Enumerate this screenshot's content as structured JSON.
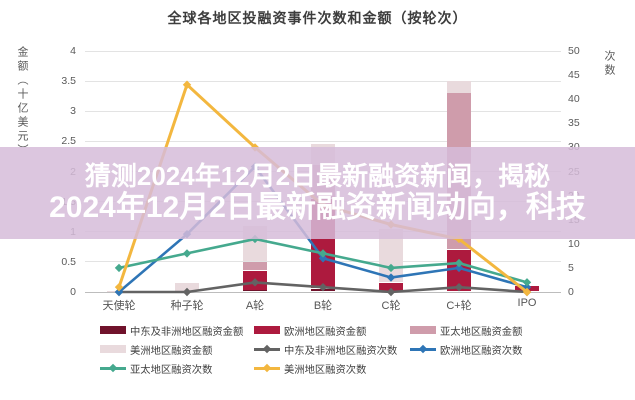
{
  "overlay": {
    "line1": "猜测2024年12月2日最新融资新闻，揭秘",
    "line2": "2024年12月2日最新融资新闻动向，科技",
    "background_rgba": "rgba(214,188,217,0.85)",
    "text_color": "#ffffff"
  },
  "chart_data": {
    "type": "combo-stacked-bar-line",
    "title": "全球各地区投融资事件次数和金额（按轮次）",
    "categories": [
      "天使轮",
      "种子轮",
      "A轮",
      "B轮",
      "C轮",
      "C+轮",
      "IPO"
    ],
    "bar_series": [
      {
        "name": "中东及非洲地区融资金额",
        "color": "#70122b",
        "values": [
          0,
          0,
          0.03,
          0.05,
          0,
          0,
          0
        ]
      },
      {
        "name": "欧洲地区融资金额",
        "color": "#ad1a3e",
        "values": [
          0,
          0,
          0.32,
          1.5,
          0.15,
          0.7,
          0.1
        ]
      },
      {
        "name": "亚太地区融资金额",
        "color": "#cf9cab",
        "values": [
          0,
          0,
          0.15,
          0.55,
          0,
          2.6,
          0
        ]
      },
      {
        "name": "美洲地区融资金额",
        "color": "#e9dadd",
        "values": [
          0.02,
          0.15,
          0.6,
          0.35,
          0.9,
          0.2,
          0
        ]
      }
    ],
    "line_series": [
      {
        "name": "中东及非洲地区融资次数",
        "color": "#636363",
        "values": [
          0,
          0,
          2,
          1,
          0,
          1,
          0
        ]
      },
      {
        "name": "欧洲地区融资次数",
        "color": "#2e75b6",
        "values": [
          0,
          12,
          26,
          7,
          3,
          5,
          1
        ]
      },
      {
        "name": "亚太地区融资次数",
        "color": "#45a98e",
        "values": [
          5,
          8,
          11,
          8,
          5,
          6,
          2
        ]
      },
      {
        "name": "美洲地区融资次数",
        "color": "#f3b73f",
        "values": [
          1,
          43,
          30,
          18,
          14,
          11,
          0
        ]
      }
    ],
    "left_axis": {
      "label": "金额（十亿美元）",
      "min": 0,
      "max": 4,
      "step": 0.5,
      "ticks": [
        "4",
        "3.5",
        "3",
        "2.5",
        "2",
        "1.5",
        "1",
        "0.5",
        "0"
      ]
    },
    "right_axis": {
      "label": "次数",
      "min": 0,
      "max": 50,
      "step": 5,
      "ticks": [
        "50",
        "45",
        "40",
        "35",
        "30",
        "25",
        "20",
        "15",
        "10",
        "5",
        "0"
      ]
    },
    "grid": true,
    "legend_position": "bottom"
  }
}
